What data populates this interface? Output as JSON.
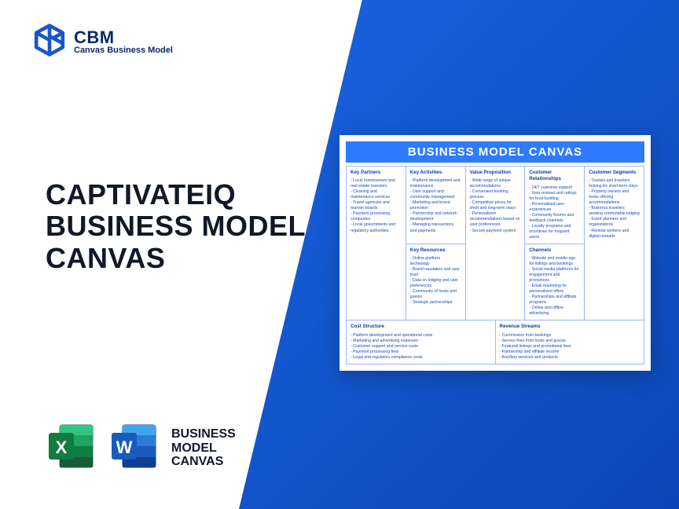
{
  "brand": {
    "abbr": "CBM",
    "name": "Canvas Business Model",
    "logo_color": "#1a56c8"
  },
  "headline": "CAPTIVATEIQ BUSINESS MODEL CANVAS",
  "file_icons_label": "BUSINESS\nMODEL\nCANVAS",
  "colors": {
    "blue_grad_start": "#1a63e0",
    "blue_grad_end": "#0b46b5",
    "canvas_title_bg": "#2f7bff",
    "cell_border": "#9ab6ff",
    "cell_text": "#174db3",
    "excel_green_dark": "#107c41",
    "excel_green_light": "#21a366",
    "word_blue_dark": "#103f91",
    "word_blue_light": "#185abd"
  },
  "canvas": {
    "title": "BUSINESS MODEL CANVAS",
    "blocks": {
      "key_partners": {
        "title": "Key Partners",
        "items": [
          "Local homeowners and real estate investors",
          "Cleaning and maintenance services",
          "Travel agencies and tourism boards",
          "Payment processing companies",
          "Local governments and regulatory authorities"
        ]
      },
      "key_activities": {
        "title": "Key Activities",
        "items": [
          "Platform development and maintenance",
          "User support and community management",
          "Marketing and brand promotion",
          "Partnership and network development",
          "Managing transactions and payments"
        ]
      },
      "key_resources": {
        "title": "Key Resources",
        "items": [
          "Online platform technology",
          "Brand reputation and user trust",
          "Data on lodging and user preferences",
          "Community of hosts and guests",
          "Strategic partnerships"
        ]
      },
      "value_proposition": {
        "title": "Value Proposition",
        "items": [
          "Wide range of unique accommodations",
          "Convenient booking process",
          "Competitive prices for short and long-term stays",
          "Personalized recommendations based on user preferences",
          "Secure payment system"
        ]
      },
      "customer_relationships": {
        "title": "Customer Relationships",
        "items": [
          "24/7 customer support",
          "User reviews and ratings for trust-building",
          "Personalized user experiences",
          "Community forums and feedback channels",
          "Loyalty programs and incentives for frequent users"
        ]
      },
      "channels": {
        "title": "Channels",
        "items": [
          "Website and mobile app for listings and bookings",
          "Social media platforms for engagement and promotions",
          "Email marketing for personalized offers",
          "Partnerships and affiliate programs",
          "Online and offline advertising"
        ]
      },
      "customer_segments": {
        "title": "Customer Segments",
        "items": [
          "Tourists and travelers looking for short-term stays",
          "Property owners and hosts offering accommodations",
          "Business travelers seeking comfortable lodging",
          "Event planners and organizations",
          "Remote workers and digital nomads"
        ]
      },
      "cost_structure": {
        "title": "Cost Structure",
        "items": [
          "Platform development and operational costs",
          "Marketing and advertising expenses",
          "Customer support and service costs",
          "Payment processing fees",
          "Legal and regulatory compliance costs"
        ]
      },
      "revenue_streams": {
        "title": "Revenue Streams",
        "items": [
          "Commission from bookings",
          "Service fees from hosts and guests",
          "Featured listings and promotional fees",
          "Partnership and affiliate income",
          "Ancillary services and products"
        ]
      }
    }
  }
}
